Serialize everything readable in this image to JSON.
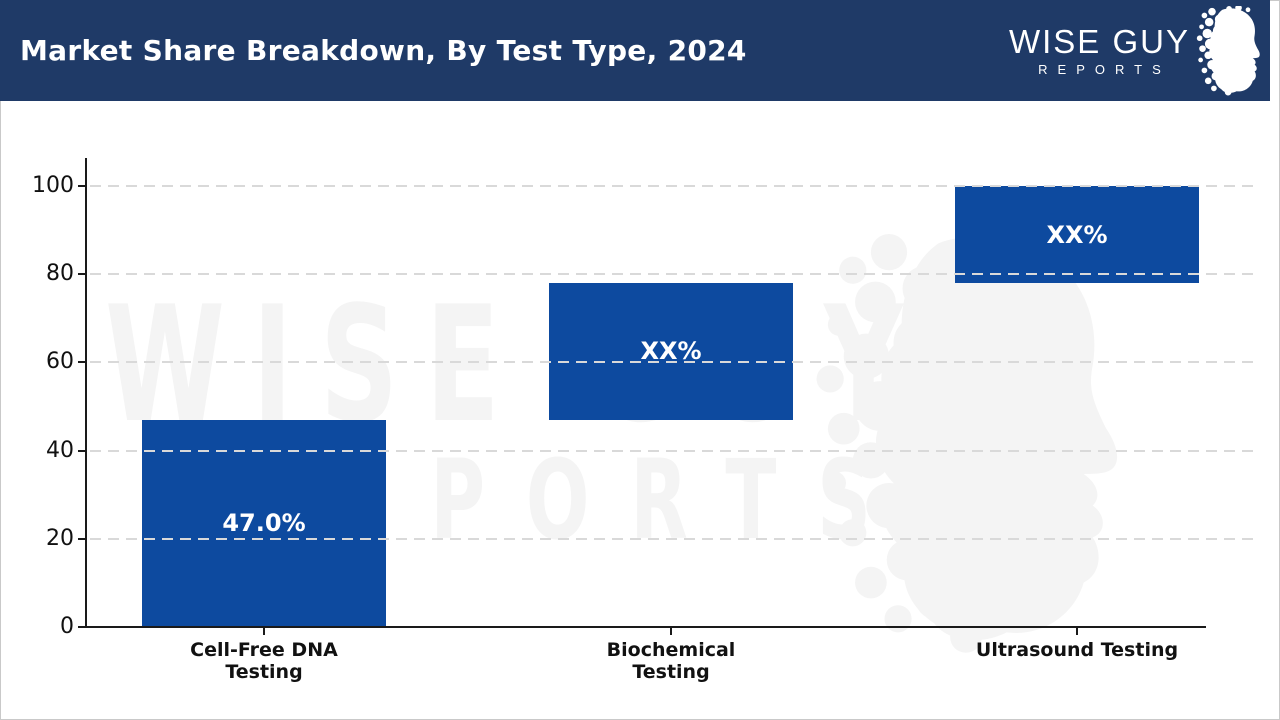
{
  "header": {
    "title": "Market Share Breakdown, By Test Type, 2024",
    "logo": {
      "line1": "WISE GUY",
      "line2": "REPORTS",
      "icon": "dotted-face-profile-icon"
    }
  },
  "watermark": {
    "line1": "WISE GUY",
    "line2": "REPORTS",
    "icon": "dotted-face-profile-icon"
  },
  "chart_data": {
    "type": "bar",
    "variant": "waterfall",
    "title": "Market Share Breakdown, By Test Type, 2024",
    "categories": [
      "Cell-Free DNA\nTesting",
      "Biochemical\nTesting",
      "Ultrasound Testing"
    ],
    "series": [
      {
        "name": "Market Share (%)",
        "segments": [
          {
            "category": "Cell-Free DNA Testing",
            "start": 0,
            "end": 47,
            "label": "47.0%"
          },
          {
            "category": "Biochemical Testing",
            "start": 47,
            "end": 78,
            "label": "XX%"
          },
          {
            "category": "Ultrasound Testing",
            "start": 78,
            "end": 100,
            "label": "XX%"
          }
        ]
      }
    ],
    "segment_spans_implied": [
      47,
      31,
      22
    ],
    "yticks": [
      0,
      20,
      40,
      60,
      80,
      100
    ],
    "ylim": [
      0,
      106
    ],
    "xlabel": "",
    "ylabel": "",
    "grid": "horizontal-dashed-over-bars",
    "legend": "none",
    "bar_color": "#0D4A9F",
    "bar_label_color": "#FFFFFF"
  },
  "colors": {
    "header_bg": "#1F3A67",
    "bar": "#0D4A9F",
    "bar_label": "#FFFFFF",
    "axis": "#1A1A1A",
    "tick_text": "#111111",
    "grid": "#D9D9D9",
    "watermark": "#F4F4F4",
    "canvas_border": "#C9C9C9",
    "page_bg": "#FFFFFF"
  }
}
